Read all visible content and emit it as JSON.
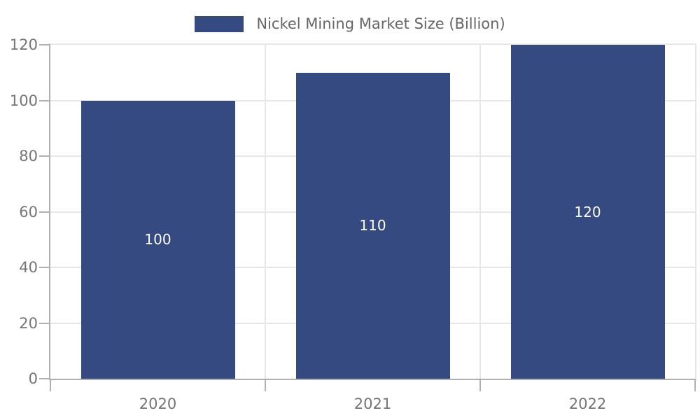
{
  "legend": {
    "label": "Nickel Mining Market Size (Billion)"
  },
  "chart_data": {
    "type": "bar",
    "title": "Nickel Mining Market Size (Billion)",
    "categories": [
      "2020",
      "2021",
      "2022"
    ],
    "series": [
      {
        "name": "Nickel Mining Market Size (Billion)",
        "values": [
          100,
          110,
          120
        ]
      }
    ],
    "data_labels": [
      "100",
      "110",
      "120"
    ],
    "xlabel": "",
    "ylabel": "",
    "ylim": [
      0,
      120
    ],
    "yticks": [
      0,
      20,
      40,
      60,
      80,
      100,
      120
    ],
    "grid": true,
    "legend_position": "top-center",
    "colors": {
      "bar": "#364a82",
      "data_label": "#ffffff",
      "grid": "#e7e7e7",
      "axis": "#b0b0b0",
      "tick_label": "#757575",
      "legend_text": "#666666",
      "background": "#ffffff"
    }
  }
}
